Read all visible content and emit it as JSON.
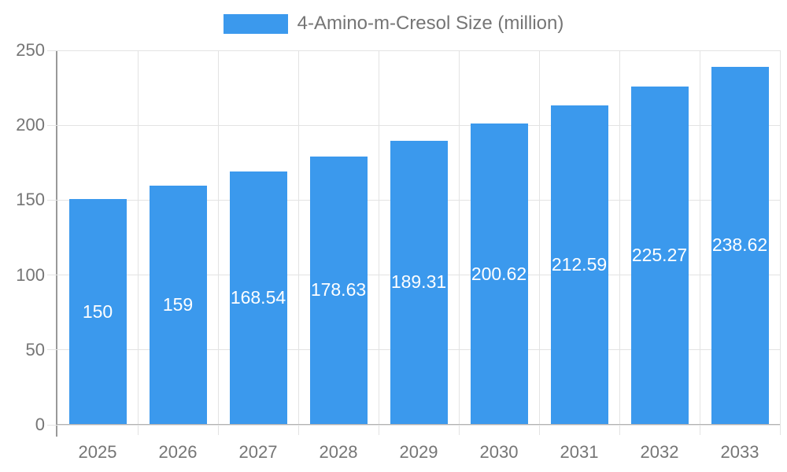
{
  "legend": {
    "label": "4-Amino-m-Cresol Size (million)"
  },
  "chart_data": {
    "type": "bar",
    "title": "4-Amino-m-Cresol Size (million)",
    "categories": [
      "2025",
      "2026",
      "2027",
      "2028",
      "2029",
      "2030",
      "2031",
      "2032",
      "2033"
    ],
    "values": [
      150,
      159,
      168.54,
      178.63,
      189.31,
      200.62,
      212.59,
      225.27,
      238.62
    ],
    "value_labels": [
      "150",
      "159",
      "168.54",
      "178.63",
      "189.31",
      "200.62",
      "212.59",
      "225.27",
      "238.62"
    ],
    "xlabel": "",
    "ylabel": "",
    "ylim": [
      0,
      250
    ],
    "yticks": [
      0,
      50,
      100,
      150,
      200,
      250
    ],
    "grid": true,
    "legend_position": "top",
    "colors": {
      "bar": "#3B99ED",
      "axis_line": "#999999",
      "baseline": "#B3B3B3",
      "gridline": "#E3E3E3",
      "tick_text": "#757575",
      "bar_label": "#FFFFFF",
      "background": "#FFFFFF"
    }
  }
}
